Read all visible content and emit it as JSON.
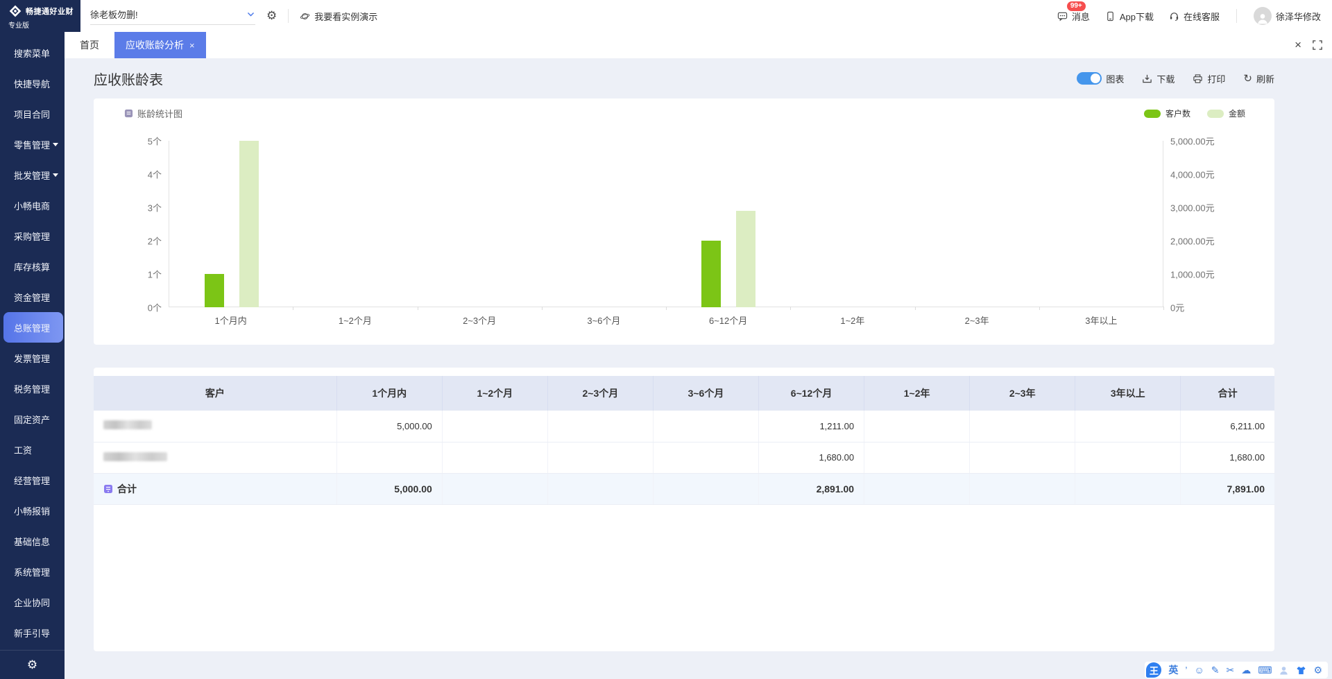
{
  "app": {
    "brand": "畅捷通好业财",
    "edition": "专业版"
  },
  "sidebar": {
    "items": [
      {
        "label": "搜索菜单",
        "arrow": false,
        "active": false
      },
      {
        "label": "快捷导航",
        "arrow": false,
        "active": false
      },
      {
        "label": "项目合同",
        "arrow": false,
        "active": false
      },
      {
        "label": "零售管理",
        "arrow": true,
        "active": false
      },
      {
        "label": "批发管理",
        "arrow": true,
        "active": false
      },
      {
        "label": "小畅电商",
        "arrow": false,
        "active": false
      },
      {
        "label": "采购管理",
        "arrow": false,
        "active": false
      },
      {
        "label": "库存核算",
        "arrow": false,
        "active": false
      },
      {
        "label": "资金管理",
        "arrow": false,
        "active": false
      },
      {
        "label": "总账管理",
        "arrow": false,
        "active": true
      },
      {
        "label": "发票管理",
        "arrow": false,
        "active": false
      },
      {
        "label": "税务管理",
        "arrow": false,
        "active": false
      },
      {
        "label": "固定资产",
        "arrow": false,
        "active": false
      },
      {
        "label": "工资",
        "arrow": false,
        "active": false
      },
      {
        "label": "经营管理",
        "arrow": false,
        "active": false
      },
      {
        "label": "小畅报销",
        "arrow": false,
        "active": false
      },
      {
        "label": "基础信息",
        "arrow": false,
        "active": false
      },
      {
        "label": "系统管理",
        "arrow": false,
        "active": false
      },
      {
        "label": "企业协同",
        "arrow": false,
        "active": false
      },
      {
        "label": "新手引导",
        "arrow": false,
        "active": false
      }
    ]
  },
  "topbar": {
    "account": "徐老板勿删!",
    "demo_label": "我要看实例演示",
    "messages_label": "消息",
    "messages_badge": "99+",
    "app_download_label": "App下载",
    "support_label": "在线客服",
    "username": "徐泽华修改"
  },
  "tabs": {
    "home": "首页",
    "active_tab": "应收账龄分析"
  },
  "page": {
    "title": "应收账龄表",
    "toolbar": {
      "chart_toggle": "图表",
      "download": "下载",
      "print": "打印",
      "refresh": "刷新"
    }
  },
  "chart_data": {
    "type": "bar",
    "title": "账龄统计图",
    "categories": [
      "1个月内",
      "1~2个月",
      "2~3个月",
      "3~6个月",
      "6~12个月",
      "1~2年",
      "2~3年",
      "3年以上"
    ],
    "series": [
      {
        "name": "客户数",
        "axis": "left",
        "color": "#7cc516",
        "values": [
          1,
          0,
          0,
          0,
          2,
          0,
          0,
          0
        ]
      },
      {
        "name": "金额",
        "axis": "right",
        "color": "#dcedc2",
        "values": [
          5000,
          0,
          0,
          0,
          2891,
          0,
          0,
          0
        ]
      }
    ],
    "left_axis": {
      "max": 5,
      "ticks": [
        "5个",
        "4个",
        "3个",
        "2个",
        "1个",
        "0个"
      ]
    },
    "right_axis": {
      "max": 5000,
      "ticks": [
        "5,000.00元",
        "4,000.00元",
        "3,000.00元",
        "2,000.00元",
        "1,000.00元",
        "0元"
      ]
    },
    "legend_position": "top-right",
    "grid": false
  },
  "table": {
    "columns": [
      "客户",
      "1个月内",
      "1~2个月",
      "2~3个月",
      "3~6个月",
      "6~12个月",
      "1~2年",
      "2~3年",
      "3年以上",
      "合计"
    ],
    "rows": [
      {
        "customer_redacted": true,
        "values": [
          "5,000.00",
          "",
          "",
          "",
          "1,211.00",
          "",
          "",
          "",
          "6,211.00"
        ]
      },
      {
        "customer_redacted": true,
        "values": [
          "",
          "",
          "",
          "",
          "1,680.00",
          "",
          "",
          "",
          "1,680.00"
        ]
      }
    ],
    "total": {
      "label": "合计",
      "values": [
        "5,000.00",
        "",
        "",
        "",
        "2,891.00",
        "",
        "",
        "",
        "7,891.00"
      ]
    }
  },
  "ime": {
    "logo": "王",
    "lang": "英"
  },
  "icons": {
    "gear": "⚙",
    "refresh": "↻",
    "close": "×",
    "tab_close": "×",
    "punct": "’",
    "smiley": "☺",
    "pencil": "✎",
    "scissors": "✂",
    "cloud": "☁",
    "keyboard": "⌨"
  },
  "colors": {
    "sidebar_bg": "#1b2b54",
    "active_blue": "#5b7ce8",
    "customers_green": "#7cc516",
    "amount_green": "#dcedc2",
    "badge_red": "#f64e4e",
    "table_header": "#e2e7f4"
  }
}
